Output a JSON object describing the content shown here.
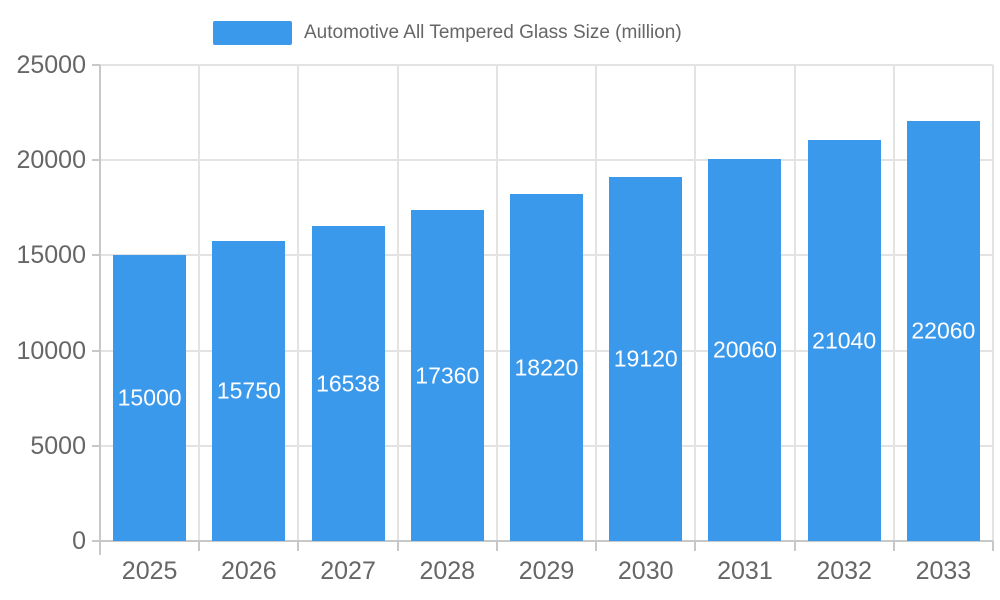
{
  "chart_data": {
    "type": "bar",
    "title": "",
    "legend": "Automotive All Tempered Glass Size (million)",
    "legend_position": "top",
    "categories": [
      "2025",
      "2026",
      "2027",
      "2028",
      "2029",
      "2030",
      "2031",
      "2032",
      "2033"
    ],
    "series": [
      {
        "name": "Automotive All Tempered Glass Size (million)",
        "values": [
          15000,
          15750,
          16538,
          17360,
          18220,
          19120,
          20060,
          21040,
          22060
        ]
      }
    ],
    "value_labels": [
      "15000",
      "15750",
      "16538",
      "17360",
      "18220",
      "19120",
      "20060",
      "21040",
      "22060"
    ],
    "value_labels_position": "inside-center",
    "xlabel": "",
    "ylabel": "",
    "ylim": [
      0,
      25000
    ],
    "y_ticks": [
      0,
      5000,
      10000,
      15000,
      20000,
      25000
    ],
    "y_tick_labels": [
      "0",
      "5000",
      "10000",
      "15000",
      "20000",
      "25000"
    ],
    "grid": true
  },
  "colors": {
    "bar": "#3b99ec",
    "axis_text": "#666666",
    "axis_line": "#c8c8c8",
    "gridline": "#e3e3e3",
    "value_label": "#ffffff",
    "background": "#ffffff"
  }
}
